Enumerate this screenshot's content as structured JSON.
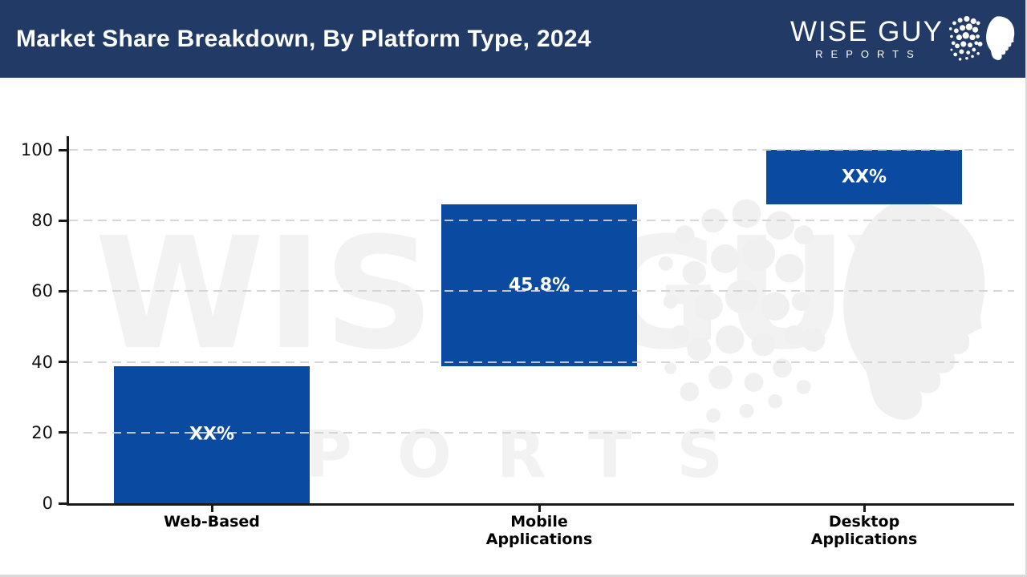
{
  "header": {
    "title": "Market Share Breakdown, By Platform Type, 2024",
    "bg_color": "#213a66",
    "logo": {
      "line1": "WISE GUY",
      "line2": "REPORTS"
    }
  },
  "watermark": {
    "line1": "WISE GUY",
    "line2": "REPORTS"
  },
  "chart_data": {
    "type": "bar",
    "subtype": "waterfall-floating-bars",
    "title": "Market Share Breakdown, By Platform Type, 2024",
    "xlabel": "",
    "ylabel": "",
    "ylim": [
      0,
      100
    ],
    "yticks": [
      0,
      20,
      40,
      60,
      80,
      100
    ],
    "grid": "horizontal-dashed",
    "legend": "none",
    "bar_color": "#0a4aa0",
    "label_color": "#ffffff",
    "axis_color": "#1a1a1a",
    "categories": [
      [
        "Web-Based"
      ],
      [
        "Mobile",
        "Applications"
      ],
      [
        "Desktop",
        "Applications"
      ]
    ],
    "segments": [
      {
        "category": "Web-Based",
        "start": 0,
        "end": 38.8,
        "label": "XX%"
      },
      {
        "category": "Mobile Applications",
        "start": 38.8,
        "end": 84.6,
        "label": "45.8%"
      },
      {
        "category": "Desktop Applications",
        "start": 84.6,
        "end": 100,
        "label": "XX%"
      }
    ]
  }
}
